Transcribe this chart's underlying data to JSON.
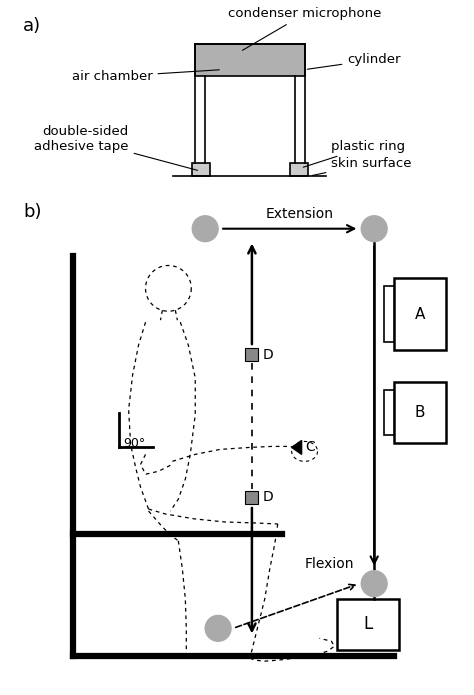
{
  "bg_color": "#ffffff",
  "label_a": "a)",
  "label_b": "b)",
  "part_a_labels": {
    "condenser_microphone": "condenser microphone",
    "air_chamber": "air chamber",
    "cylinder": "cylinder",
    "double_sided_1": "double-sided",
    "double_sided_2": "adhesive tape",
    "plastic_ring": "plastic ring",
    "skin_surface": "skin surface"
  },
  "part_b_labels": {
    "extension": "Extension",
    "flexion": "Flexion",
    "D": "D",
    "C": "C",
    "A": "A",
    "B": "B",
    "L": "L",
    "angle": "90°"
  },
  "gray_circ": "#aaaaaa",
  "gray_sq": "#888888",
  "gray_pad": "#cccccc",
  "gray_ac": "#b0b0b0"
}
